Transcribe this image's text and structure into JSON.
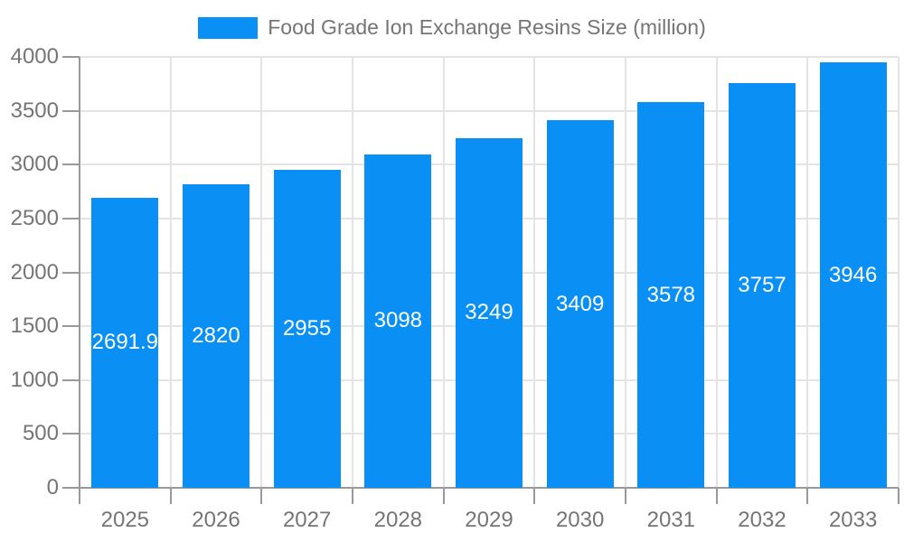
{
  "legend": {
    "label": "Food Grade Ion Exchange Resins Size (million)"
  },
  "chart_data": {
    "type": "bar",
    "title": "Food Grade Ion Exchange Resins Size (million)",
    "legend_entries": [
      "Food Grade Ion Exchange Resins Size (million)"
    ],
    "legend_position": "top-center",
    "categories": [
      "2025",
      "2026",
      "2027",
      "2028",
      "2029",
      "2030",
      "2031",
      "2032",
      "2033"
    ],
    "values": [
      2691.9,
      2820,
      2955,
      3098,
      3249,
      3409,
      3578,
      3757,
      3946
    ],
    "value_labels": [
      "2691.9",
      "2820",
      "2955",
      "3098",
      "3249",
      "3409",
      "3578",
      "3757",
      "3946"
    ],
    "xlabel": "",
    "ylabel": "",
    "ylim": [
      0,
      4000
    ],
    "ytick_step": 500,
    "grid": true,
    "colors": {
      "bar": "#0a90f5",
      "bar_value_text": "#ffffff",
      "axis": "#999999",
      "gridline": "#e4e4e4",
      "tick_text": "#757575",
      "legend_text": "#757575"
    }
  }
}
